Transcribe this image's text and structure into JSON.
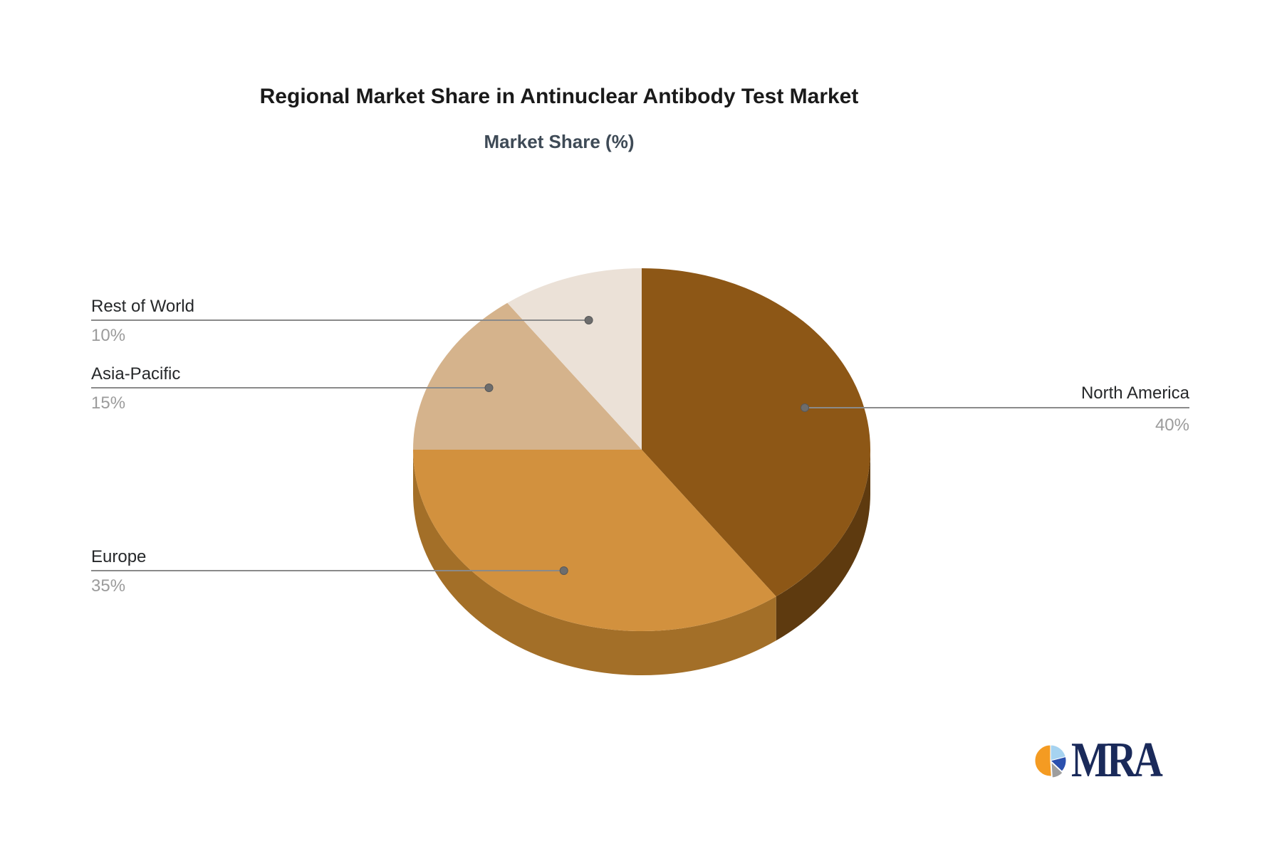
{
  "title": "Regional Market Share in Antinuclear Antibody Test Market",
  "subtitle": "Market Share (%)",
  "chart_data": {
    "type": "pie",
    "title": "Regional Market Share in Antinuclear Antibody Test Market",
    "subtitle": "Market Share (%)",
    "unit": "%",
    "direction": "clockwise",
    "start_angle_deg": 90,
    "effect": "3d-depth",
    "legend": "none",
    "categories": [
      "North America",
      "Europe",
      "Asia-Pacific",
      "Rest of World"
    ],
    "values": [
      40,
      35,
      15,
      10
    ],
    "slices": [
      {
        "label": "North America",
        "value": 40,
        "display_value": "40%",
        "color": "#8d5716",
        "side_color": "#5e3a0f",
        "label_side": "right"
      },
      {
        "label": "Europe",
        "value": 35,
        "display_value": "35%",
        "color": "#d2913e",
        "side_color": "#a36f28",
        "label_side": "left"
      },
      {
        "label": "Asia-Pacific",
        "value": 15,
        "display_value": "15%",
        "color": "#d5b38c",
        "side_color": "#b2946f",
        "label_side": "left"
      },
      {
        "label": "Rest of World",
        "value": 10,
        "display_value": "10%",
        "color": "#ebe1d7",
        "side_color": "#cfc3b6",
        "label_side": "left"
      }
    ]
  },
  "logo": {
    "text": "MRA",
    "text_color": "#1a2a5a",
    "pie_slices": [
      {
        "name": "light-blue",
        "color": "#a6d3f0",
        "pct": 21
      },
      {
        "name": "royal-blue",
        "color": "#2b50ae",
        "pct": 16
      },
      {
        "name": "gray",
        "color": "#9e9e9e",
        "pct": 12
      },
      {
        "name": "orange",
        "color": "#f49b22",
        "pct": 51
      }
    ]
  },
  "colors": {
    "background": "#ffffff",
    "title_text": "#1a1a1a",
    "subtitle_text": "#3e4a56",
    "label_text": "#26282a",
    "value_text": "#9b9b9b",
    "leader_line": "#8a8a8a",
    "leader_dot": "#6d6d6d"
  }
}
